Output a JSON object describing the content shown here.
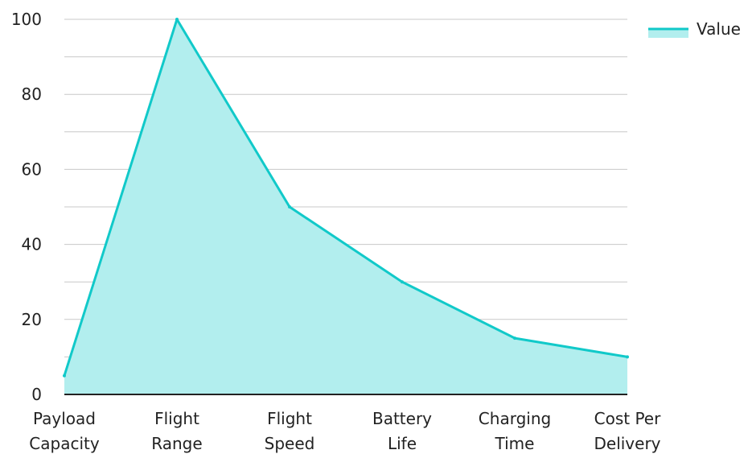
{
  "chart_data": {
    "type": "area",
    "categories": [
      "Payload Capacity",
      "Flight Range",
      "Flight Speed",
      "Battery Life",
      "Charging Time",
      "Cost Per Delivery"
    ],
    "category_lines": [
      [
        "Payload",
        "Capacity"
      ],
      [
        "Flight",
        "Range"
      ],
      [
        "Flight",
        "Speed"
      ],
      [
        "Battery",
        "Life"
      ],
      [
        "Charging",
        "Time"
      ],
      [
        "Cost Per",
        "Delivery"
      ]
    ],
    "series": [
      {
        "name": "Value",
        "values": [
          5,
          100,
          50,
          30,
          15,
          10
        ]
      }
    ],
    "title": "",
    "xlabel": "",
    "ylabel": "",
    "ylim": [
      0,
      100
    ],
    "yticks": [
      0,
      20,
      40,
      60,
      80,
      100
    ],
    "grid": true,
    "legend_position": "top-right",
    "colors": {
      "line": "#11c9c9",
      "fill": "#b2eeee",
      "grid": "#c8c8c8",
      "axis": "#222222"
    }
  }
}
